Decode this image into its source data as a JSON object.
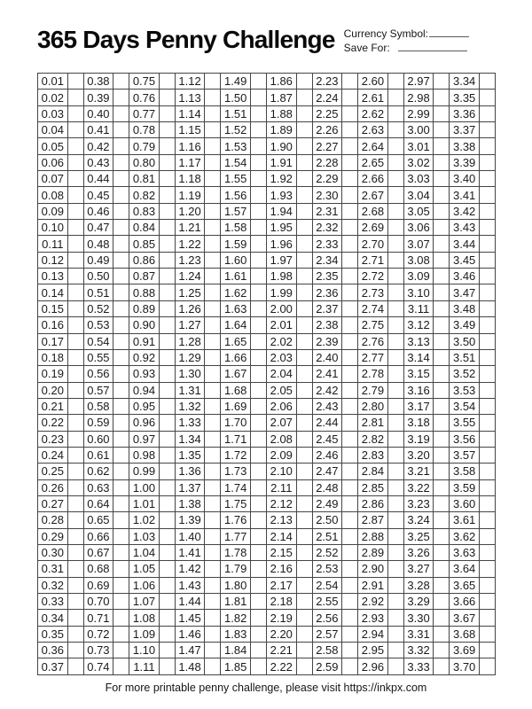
{
  "header": {
    "title": "365 Days Penny Challenge",
    "currency_label": "Currency Symbol:",
    "currency_value": "",
    "save_for_label": "Save For:",
    "save_for_value": ""
  },
  "table": {
    "num_columns": 10,
    "num_rows": 37,
    "check_cell_value": "",
    "rows": [
      [
        "0.01",
        "0.38",
        "0.75",
        "1.12",
        "1.49",
        "1.86",
        "2.23",
        "2.60",
        "2.97",
        "3.34"
      ],
      [
        "0.02",
        "0.39",
        "0.76",
        "1.13",
        "1.50",
        "1.87",
        "2.24",
        "2.61",
        "2.98",
        "3.35"
      ],
      [
        "0.03",
        "0.40",
        "0.77",
        "1.14",
        "1.51",
        "1.88",
        "2.25",
        "2.62",
        "2.99",
        "3.36"
      ],
      [
        "0.04",
        "0.41",
        "0.78",
        "1.15",
        "1.52",
        "1.89",
        "2.26",
        "2.63",
        "3.00",
        "3.37"
      ],
      [
        "0.05",
        "0.42",
        "0.79",
        "1.16",
        "1.53",
        "1.90",
        "2.27",
        "2.64",
        "3.01",
        "3.38"
      ],
      [
        "0.06",
        "0.43",
        "0.80",
        "1.17",
        "1.54",
        "1.91",
        "2.28",
        "2.65",
        "3.02",
        "3.39"
      ],
      [
        "0.07",
        "0.44",
        "0.81",
        "1.18",
        "1.55",
        "1.92",
        "2.29",
        "2.66",
        "3.03",
        "3.40"
      ],
      [
        "0.08",
        "0.45",
        "0.82",
        "1.19",
        "1.56",
        "1.93",
        "2.30",
        "2.67",
        "3.04",
        "3.41"
      ],
      [
        "0.09",
        "0.46",
        "0.83",
        "1.20",
        "1.57",
        "1.94",
        "2.31",
        "2.68",
        "3.05",
        "3.42"
      ],
      [
        "0.10",
        "0.47",
        "0.84",
        "1.21",
        "1.58",
        "1.95",
        "2.32",
        "2.69",
        "3.06",
        "3.43"
      ],
      [
        "0.11",
        "0.48",
        "0.85",
        "1.22",
        "1.59",
        "1.96",
        "2.33",
        "2.70",
        "3.07",
        "3.44"
      ],
      [
        "0.12",
        "0.49",
        "0.86",
        "1.23",
        "1.60",
        "1.97",
        "2.34",
        "2.71",
        "3.08",
        "3.45"
      ],
      [
        "0.13",
        "0.50",
        "0.87",
        "1.24",
        "1.61",
        "1.98",
        "2.35",
        "2.72",
        "3.09",
        "3.46"
      ],
      [
        "0.14",
        "0.51",
        "0.88",
        "1.25",
        "1.62",
        "1.99",
        "2.36",
        "2.73",
        "3.10",
        "3.47"
      ],
      [
        "0.15",
        "0.52",
        "0.89",
        "1.26",
        "1.63",
        "2.00",
        "2.37",
        "2.74",
        "3.11",
        "3.48"
      ],
      [
        "0.16",
        "0.53",
        "0.90",
        "1.27",
        "1.64",
        "2.01",
        "2.38",
        "2.75",
        "3.12",
        "3.49"
      ],
      [
        "0.17",
        "0.54",
        "0.91",
        "1.28",
        "1.65",
        "2.02",
        "2.39",
        "2.76",
        "3.13",
        "3.50"
      ],
      [
        "0.18",
        "0.55",
        "0.92",
        "1.29",
        "1.66",
        "2.03",
        "2.40",
        "2.77",
        "3.14",
        "3.51"
      ],
      [
        "0.19",
        "0.56",
        "0.93",
        "1.30",
        "1.67",
        "2.04",
        "2.41",
        "2.78",
        "3.15",
        "3.52"
      ],
      [
        "0.20",
        "0.57",
        "0.94",
        "1.31",
        "1.68",
        "2.05",
        "2.42",
        "2.79",
        "3.16",
        "3.53"
      ],
      [
        "0.21",
        "0.58",
        "0.95",
        "1.32",
        "1.69",
        "2.06",
        "2.43",
        "2.80",
        "3.17",
        "3.54"
      ],
      [
        "0.22",
        "0.59",
        "0.96",
        "1.33",
        "1.70",
        "2.07",
        "2.44",
        "2.81",
        "3.18",
        "3.55"
      ],
      [
        "0.23",
        "0.60",
        "0.97",
        "1.34",
        "1.71",
        "2.08",
        "2.45",
        "2.82",
        "3.19",
        "3.56"
      ],
      [
        "0.24",
        "0.61",
        "0.98",
        "1.35",
        "1.72",
        "2.09",
        "2.46",
        "2.83",
        "3.20",
        "3.57"
      ],
      [
        "0.25",
        "0.62",
        "0.99",
        "1.36",
        "1.73",
        "2.10",
        "2.47",
        "2.84",
        "3.21",
        "3.58"
      ],
      [
        "0.26",
        "0.63",
        "1.00",
        "1.37",
        "1.74",
        "2.11",
        "2.48",
        "2.85",
        "3.22",
        "3.59"
      ],
      [
        "0.27",
        "0.64",
        "1.01",
        "1.38",
        "1.75",
        "2.12",
        "2.49",
        "2.86",
        "3.23",
        "3.60"
      ],
      [
        "0.28",
        "0.65",
        "1.02",
        "1.39",
        "1.76",
        "2.13",
        "2.50",
        "2.87",
        "3.24",
        "3.61"
      ],
      [
        "0.29",
        "0.66",
        "1.03",
        "1.40",
        "1.77",
        "2.14",
        "2.51",
        "2.88",
        "3.25",
        "3.62"
      ],
      [
        "0.30",
        "0.67",
        "1.04",
        "1.41",
        "1.78",
        "2.15",
        "2.52",
        "2.89",
        "3.26",
        "3.63"
      ],
      [
        "0.31",
        "0.68",
        "1.05",
        "1.42",
        "1.79",
        "2.16",
        "2.53",
        "2.90",
        "3.27",
        "3.64"
      ],
      [
        "0.32",
        "0.69",
        "1.06",
        "1.43",
        "1.80",
        "2.17",
        "2.54",
        "2.91",
        "3.28",
        "3.65"
      ],
      [
        "0.33",
        "0.70",
        "1.07",
        "1.44",
        "1.81",
        "2.18",
        "2.55",
        "2.92",
        "3.29",
        "3.66"
      ],
      [
        "0.34",
        "0.71",
        "1.08",
        "1.45",
        "1.82",
        "2.19",
        "2.56",
        "2.93",
        "3.30",
        "3.67"
      ],
      [
        "0.35",
        "0.72",
        "1.09",
        "1.46",
        "1.83",
        "2.20",
        "2.57",
        "2.94",
        "3.31",
        "3.68"
      ],
      [
        "0.36",
        "0.73",
        "1.10",
        "1.47",
        "1.84",
        "2.21",
        "2.58",
        "2.95",
        "3.32",
        "3.69"
      ],
      [
        "0.37",
        "0.74",
        "1.11",
        "1.48",
        "1.85",
        "2.22",
        "2.59",
        "2.96",
        "3.33",
        "3.70"
      ]
    ]
  },
  "footer": {
    "note": "For more printable penny challenge, please visit https://inkpx.com"
  },
  "colors": {
    "text": "#141414",
    "border": "#454545",
    "background": "#ffffff"
  }
}
